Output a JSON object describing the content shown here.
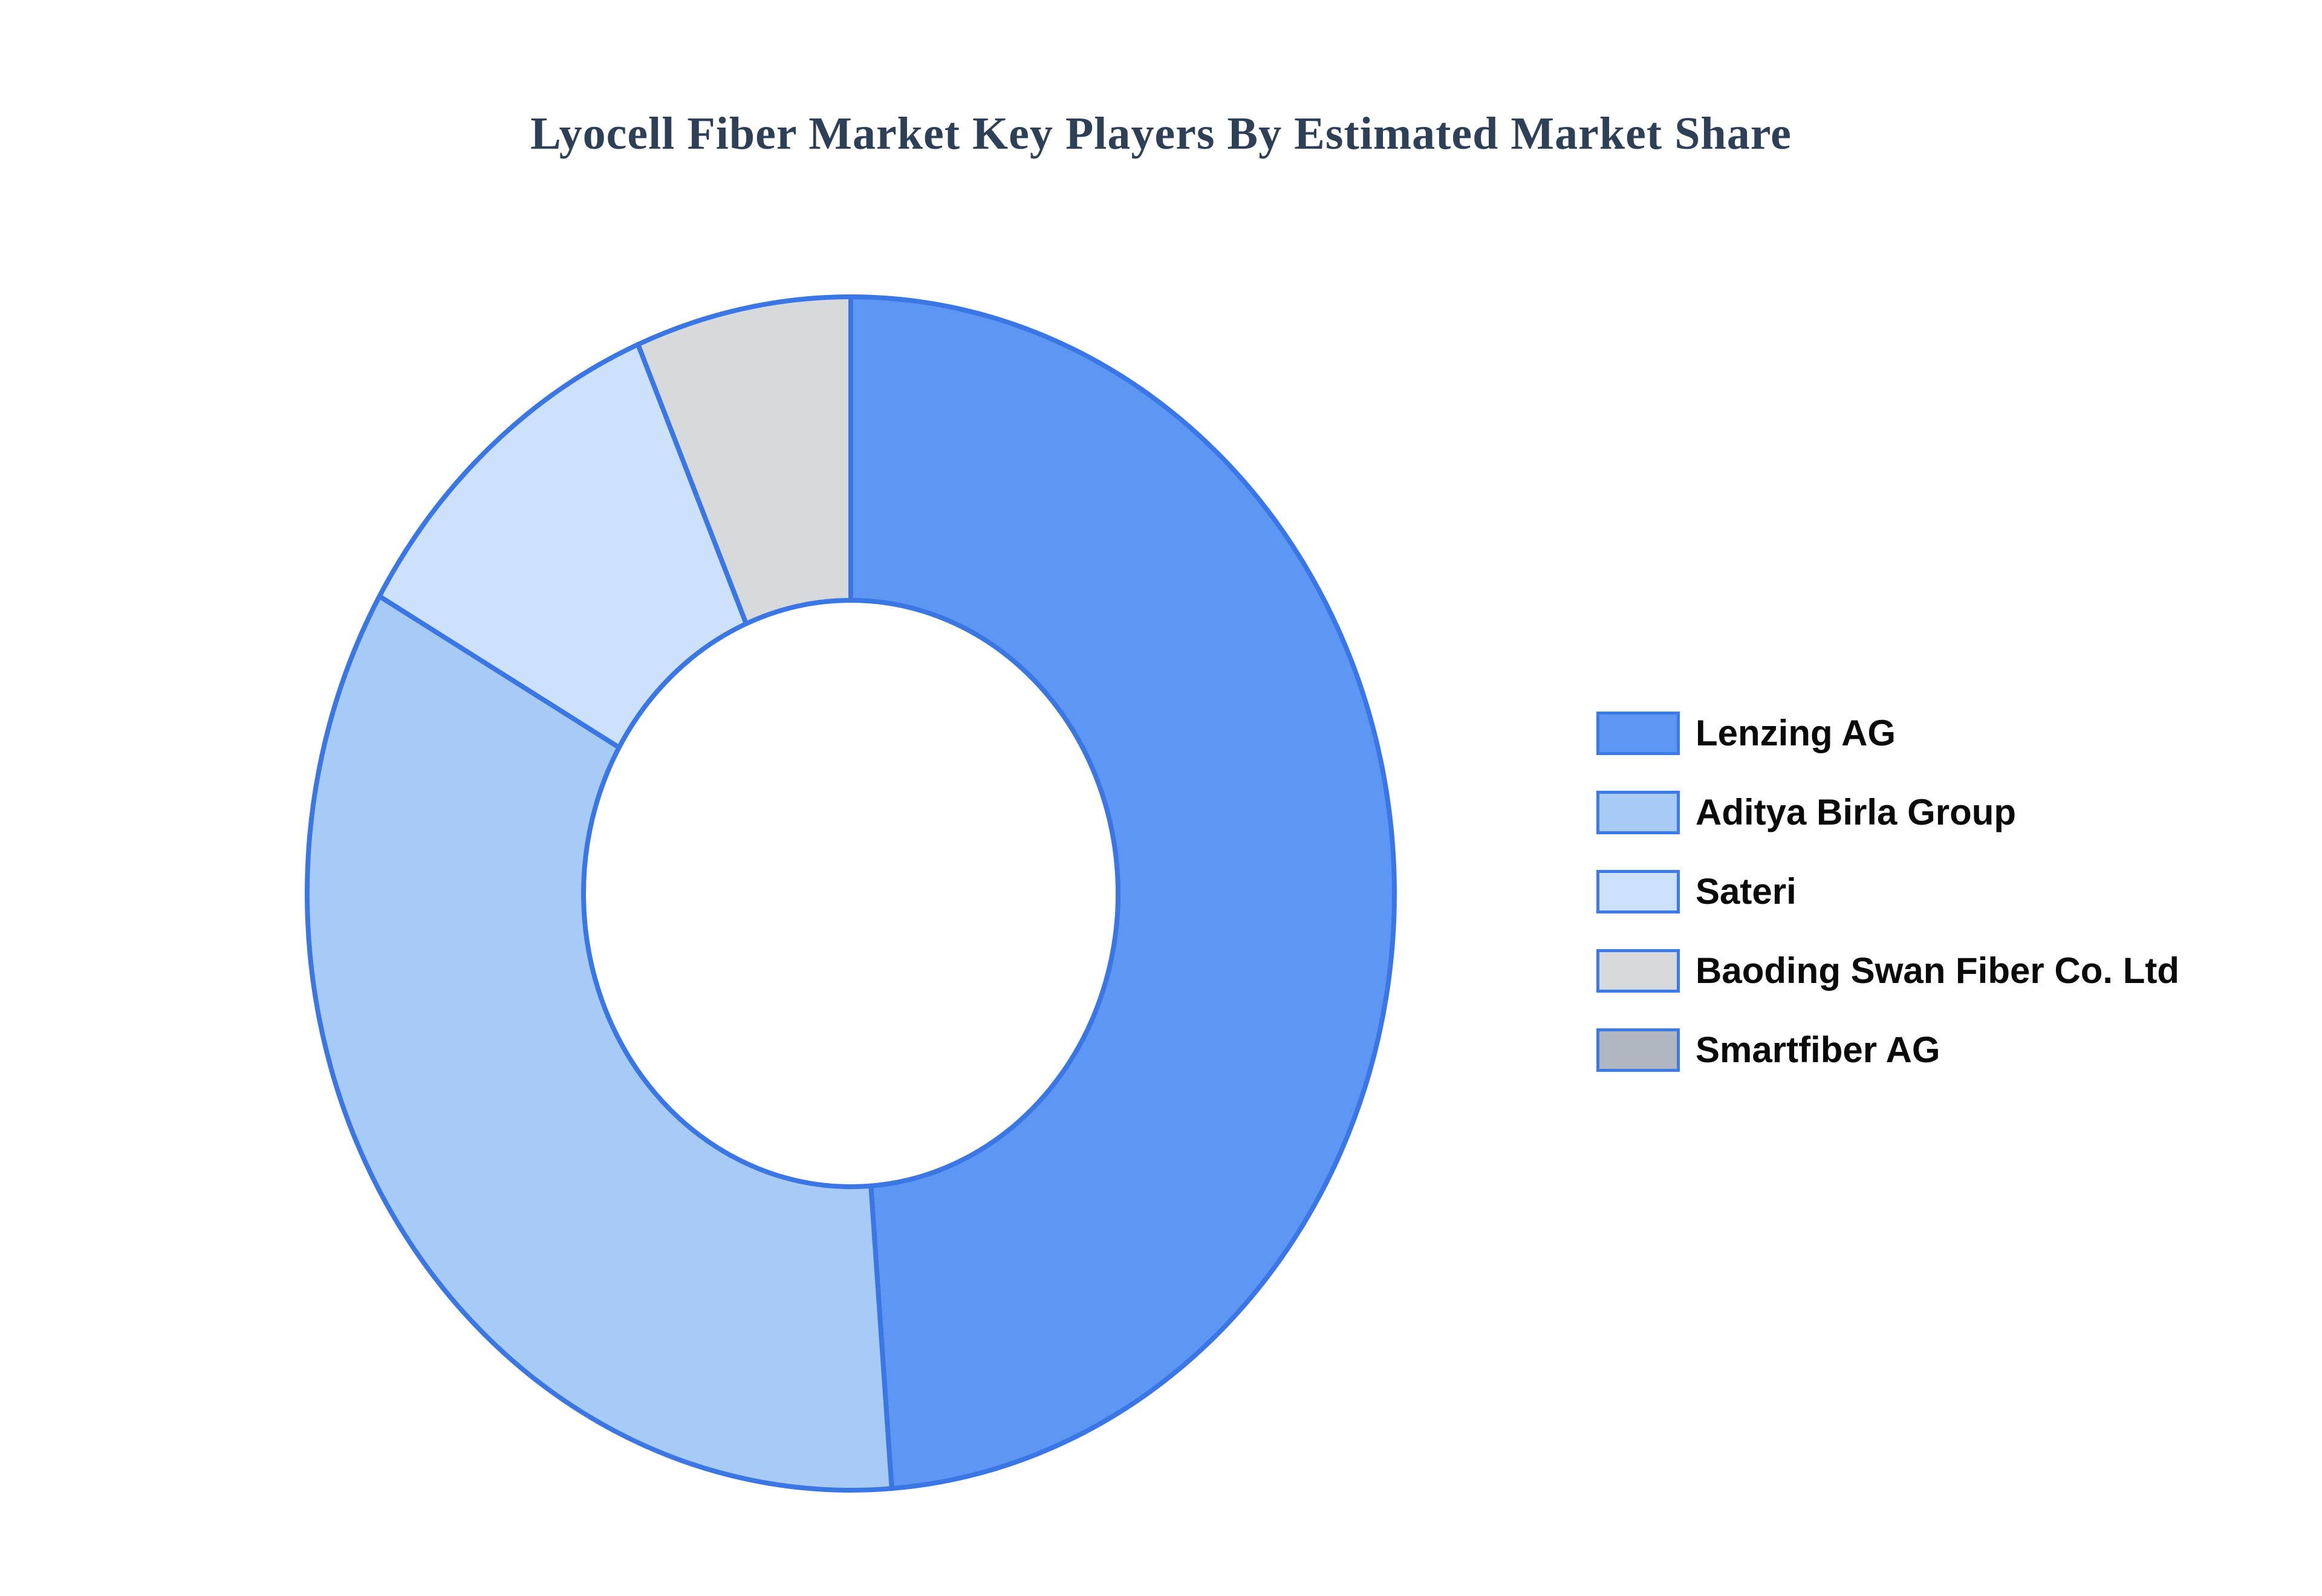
{
  "chart_data": {
    "type": "pie",
    "subtype": "donut",
    "title": "Lyocell Fiber Market Key Players By Estimated Market Share",
    "labels": [
      "Lenzing AG",
      "Aditya Birla Group",
      "Sateri",
      "Baoding Swan Fiber Co. Ltd",
      "Smartfiber AG"
    ],
    "values": [
      48.8,
      34.5,
      10.3,
      6.4,
      0
    ],
    "units": "percent_market_share_estimated",
    "colors": [
      "#5E96F3",
      "#A7CBF5",
      "#CEE1FA",
      "#D6DADD",
      "#AFB6BD"
    ],
    "stroke_color": "#3B76E5",
    "title_color": "#2E4057",
    "background_color": "#FFFFFF",
    "start_angle_deg": 0,
    "direction": "clockwise",
    "inner_radius_ratio": 0.49,
    "legend_position": "right",
    "grid": false,
    "data_labels_shown": false
  }
}
